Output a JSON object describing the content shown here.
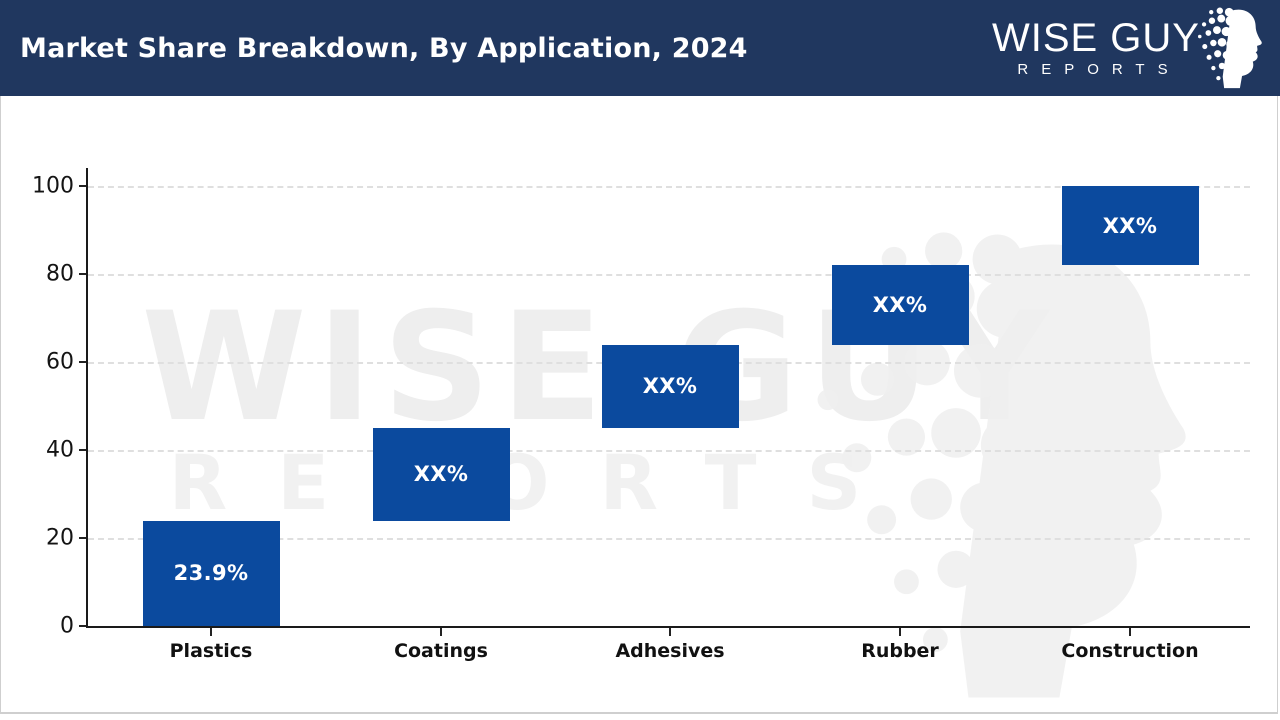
{
  "header": {
    "title": "Market Share Breakdown, By Application, 2024"
  },
  "logo": {
    "line1": "WISE GUY",
    "line2": "REPORTS"
  },
  "watermark": {
    "line1": "WISE GUY",
    "line2": "REPORTS"
  },
  "colors": {
    "header_bg": "#20375f",
    "header_text": "#ffffff",
    "bar": "#0b4a9e",
    "bar_label": "#ffffff",
    "grid": "#dfdfdf",
    "axis": "#1a1a1a",
    "watermark": "#eeeeee"
  },
  "chart_data": {
    "type": "bar",
    "subtype": "waterfall",
    "title": "Market Share Breakdown, By Application, 2024",
    "xlabel": "",
    "ylabel": "",
    "categories": [
      "Plastics",
      "Coatings",
      "Adhesives",
      "Rubber",
      "Construction"
    ],
    "bars": [
      {
        "label": "Plastics",
        "start": 0,
        "end": 23.9,
        "value_label": "23.9%"
      },
      {
        "label": "Coatings",
        "start": 23.9,
        "end": 45.0,
        "value_label": "XX%"
      },
      {
        "label": "Adhesives",
        "start": 45.0,
        "end": 63.9,
        "value_label": "XX%"
      },
      {
        "label": "Rubber",
        "start": 63.9,
        "end": 82.0,
        "value_label": "XX%"
      },
      {
        "label": "Construction",
        "start": 82.0,
        "end": 100.0,
        "value_label": "XX%"
      }
    ],
    "yticks": [
      0,
      20,
      40,
      60,
      80,
      100
    ],
    "ylim": [
      0,
      104
    ],
    "grid": "horizontal-dashed",
    "legend": "none"
  }
}
